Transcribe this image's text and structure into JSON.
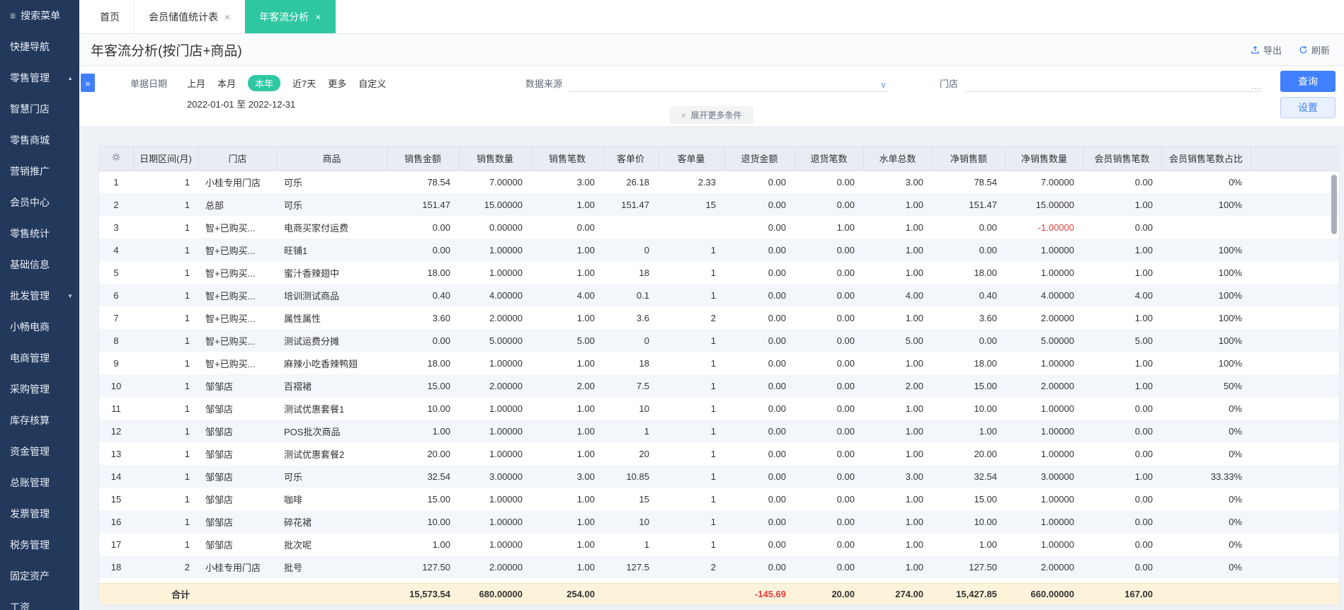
{
  "colors": {
    "sidebar_bg": "#22395c",
    "accent_teal": "#2fc7a2",
    "primary_blue": "#4080ff",
    "negative_red": "#e23c3c",
    "table_header_bg": "#e9edf3",
    "total_row_bg": "#fcf3da"
  },
  "sidebar": {
    "items": [
      {
        "label": "搜索菜单",
        "icon": "menu"
      },
      {
        "label": "快捷导航"
      },
      {
        "label": "零售管理",
        "arrow": "up"
      },
      {
        "label": "智慧门店",
        "sub": true
      },
      {
        "label": "零售商城",
        "sub": true
      },
      {
        "label": "营销推广",
        "sub": true
      },
      {
        "label": "会员中心",
        "sub": true
      },
      {
        "label": "零售统计",
        "sub": true
      },
      {
        "label": "基础信息",
        "sub": true
      },
      {
        "label": "批发管理",
        "arrow": "down"
      },
      {
        "label": "小畅电商"
      },
      {
        "label": "电商管理"
      },
      {
        "label": "采购管理"
      },
      {
        "label": "库存核算"
      },
      {
        "label": "资金管理"
      },
      {
        "label": "总账管理"
      },
      {
        "label": "发票管理"
      },
      {
        "label": "税务管理"
      },
      {
        "label": "固定资产"
      },
      {
        "label": "工资"
      }
    ]
  },
  "tabs": [
    {
      "label": "首页",
      "closable": false,
      "active": false
    },
    {
      "label": "会员储值统计表",
      "closable": true,
      "active": false
    },
    {
      "label": "年客流分析",
      "closable": true,
      "active": true
    }
  ],
  "page": {
    "title": "年客流分析(按门店+商品)",
    "export_label": "导出",
    "refresh_label": "刷新"
  },
  "filters": {
    "date_label": "单据日期",
    "date_options": [
      {
        "label": "上月",
        "selected": false
      },
      {
        "label": "本月",
        "selected": false
      },
      {
        "label": "本年",
        "selected": true
      },
      {
        "label": "近7天",
        "selected": false
      },
      {
        "label": "更多",
        "selected": false
      },
      {
        "label": "自定义",
        "selected": false
      }
    ],
    "date_range": "2022-01-01 至 2022-12-31",
    "source_label": "数据来源",
    "source_value": "",
    "store_label": "门店",
    "store_value": "",
    "store_more": "...",
    "query_label": "查询",
    "settings_label": "设置",
    "expand_label": "展开更多条件"
  },
  "table": {
    "columns": [
      "",
      "日期区间(月)",
      "门店",
      "商品",
      "销售金额",
      "销售数量",
      "销售笔数",
      "客单价",
      "客单量",
      "退货金额",
      "退货笔数",
      "水单总数",
      "净销售额",
      "净销售数量",
      "会员销售笔数",
      "会员销售笔数占比"
    ],
    "rows": [
      [
        "1",
        "1",
        "小桂专用门店",
        "可乐",
        "78.54",
        "7.00000",
        "3.00",
        "26.18",
        "2.33",
        "0.00",
        "0.00",
        "3.00",
        "78.54",
        "7.00000",
        "0.00",
        "0%"
      ],
      [
        "2",
        "1",
        "总部",
        "可乐",
        "151.47",
        "15.00000",
        "1.00",
        "151.47",
        "15",
        "0.00",
        "0.00",
        "1.00",
        "151.47",
        "15.00000",
        "1.00",
        "100%"
      ],
      [
        "3",
        "1",
        "智+已购买...",
        "电商买家付运费",
        "0.00",
        "0.00000",
        "0.00",
        "",
        "",
        "0.00",
        "1.00",
        "1.00",
        "0.00",
        "-1.00000",
        "0.00",
        ""
      ],
      [
        "4",
        "1",
        "智+已购买...",
        "旺铺1",
        "0.00",
        "1.00000",
        "1.00",
        "0",
        "1",
        "0.00",
        "0.00",
        "1.00",
        "0.00",
        "1.00000",
        "1.00",
        "100%"
      ],
      [
        "5",
        "1",
        "智+已购买...",
        "蜜汁香辣翅中",
        "18.00",
        "1.00000",
        "1.00",
        "18",
        "1",
        "0.00",
        "0.00",
        "1.00",
        "18.00",
        "1.00000",
        "1.00",
        "100%"
      ],
      [
        "6",
        "1",
        "智+已购买...",
        "培训测试商品",
        "0.40",
        "4.00000",
        "4.00",
        "0.1",
        "1",
        "0.00",
        "0.00",
        "4.00",
        "0.40",
        "4.00000",
        "4.00",
        "100%"
      ],
      [
        "7",
        "1",
        "智+已购买...",
        "属性属性",
        "3.60",
        "2.00000",
        "1.00",
        "3.6",
        "2",
        "0.00",
        "0.00",
        "1.00",
        "3.60",
        "2.00000",
        "1.00",
        "100%"
      ],
      [
        "8",
        "1",
        "智+已购买...",
        "测试运费分摊",
        "0.00",
        "5.00000",
        "5.00",
        "0",
        "1",
        "0.00",
        "0.00",
        "5.00",
        "0.00",
        "5.00000",
        "5.00",
        "100%"
      ],
      [
        "9",
        "1",
        "智+已购买...",
        "麻辣小吃香辣鸭翅",
        "18.00",
        "1.00000",
        "1.00",
        "18",
        "1",
        "0.00",
        "0.00",
        "1.00",
        "18.00",
        "1.00000",
        "1.00",
        "100%"
      ],
      [
        "10",
        "1",
        "邹邹店",
        "百褶裙",
        "15.00",
        "2.00000",
        "2.00",
        "7.5",
        "1",
        "0.00",
        "0.00",
        "2.00",
        "15.00",
        "2.00000",
        "1.00",
        "50%"
      ],
      [
        "11",
        "1",
        "邹邹店",
        "测试优惠套餐1",
        "10.00",
        "1.00000",
        "1.00",
        "10",
        "1",
        "0.00",
        "0.00",
        "1.00",
        "10.00",
        "1.00000",
        "0.00",
        "0%"
      ],
      [
        "12",
        "1",
        "邹邹店",
        "POS批次商品",
        "1.00",
        "1.00000",
        "1.00",
        "1",
        "1",
        "0.00",
        "0.00",
        "1.00",
        "1.00",
        "1.00000",
        "0.00",
        "0%"
      ],
      [
        "13",
        "1",
        "邹邹店",
        "测试优惠套餐2",
        "20.00",
        "1.00000",
        "1.00",
        "20",
        "1",
        "0.00",
        "0.00",
        "1.00",
        "20.00",
        "1.00000",
        "0.00",
        "0%"
      ],
      [
        "14",
        "1",
        "邹邹店",
        "可乐",
        "32.54",
        "3.00000",
        "3.00",
        "10.85",
        "1",
        "0.00",
        "0.00",
        "3.00",
        "32.54",
        "3.00000",
        "1.00",
        "33.33%"
      ],
      [
        "15",
        "1",
        "邹邹店",
        "咖啡",
        "15.00",
        "1.00000",
        "1.00",
        "15",
        "1",
        "0.00",
        "0.00",
        "1.00",
        "15.00",
        "1.00000",
        "0.00",
        "0%"
      ],
      [
        "16",
        "1",
        "邹邹店",
        "碎花裙",
        "10.00",
        "1.00000",
        "1.00",
        "10",
        "1",
        "0.00",
        "0.00",
        "1.00",
        "10.00",
        "1.00000",
        "0.00",
        "0%"
      ],
      [
        "17",
        "1",
        "邹邹店",
        "批次呢",
        "1.00",
        "1.00000",
        "1.00",
        "1",
        "1",
        "0.00",
        "0.00",
        "1.00",
        "1.00",
        "1.00000",
        "0.00",
        "0%"
      ],
      [
        "18",
        "2",
        "小桂专用门店",
        "批号",
        "127.50",
        "2.00000",
        "1.00",
        "127.5",
        "2",
        "0.00",
        "0.00",
        "1.00",
        "127.50",
        "2.00000",
        "0.00",
        "0%"
      ]
    ],
    "footer": [
      "",
      "合计",
      "",
      "",
      "15,573.54",
      "680.00000",
      "254.00",
      "",
      "",
      "-145.69",
      "20.00",
      "274.00",
      "15,427.85",
      "660.00000",
      "167.00",
      ""
    ]
  }
}
